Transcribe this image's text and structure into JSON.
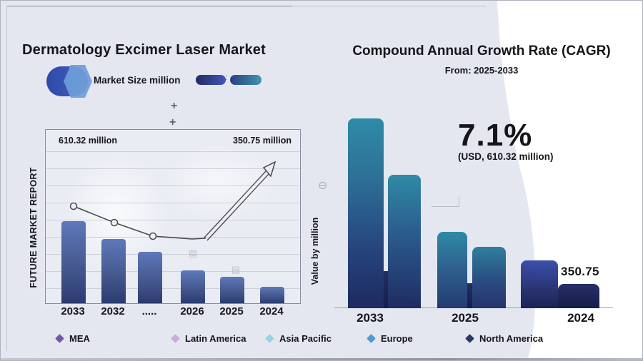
{
  "header": {
    "left_title": "Dermatology Excimer Laser Market",
    "left_subtitle": "Market Size million",
    "pill_separator": ":",
    "plus_mark": "+",
    "right_title": "Compound Annual Growth Rate (CAGR)",
    "right_subtitle": "From: 2025-2033"
  },
  "left_panel": {
    "top_left_value": "610.32 million",
    "top_right_value": "350.75 million",
    "side_label": "FUTURE MARKET REPORT",
    "value_axis_label": "Value by million",
    "minus_glyph": "⊖",
    "ghost_glyph": "▤"
  },
  "right_panel": {
    "cagr_value": "7.1%",
    "cagr_basis": "(USD, 610.32 million)",
    "end_value": "350.75"
  },
  "legend": {
    "items": [
      {
        "label": "MEA",
        "color": "#7456a5"
      },
      {
        "label": "Latin America",
        "color": "#d2a8d8"
      },
      {
        "label": "Asia Pacific",
        "color": "#96d2e8"
      },
      {
        "label": "Europe",
        "color": "#4a9ad9"
      },
      {
        "label": "North America",
        "color": "#2b3766"
      }
    ]
  },
  "colors": {
    "background": "#e4e7f0",
    "panel_border": "#878d9b",
    "left_bar_top": "#5e78bb",
    "left_bar_bottom": "#2a3b70",
    "teal_accent": "#2e8ba6",
    "navy_accent": "#161d48",
    "royal_blue": "#3c50ab"
  },
  "chart_data": [
    {
      "type": "bar",
      "name": "market-size-by-year",
      "title": "Market Size million",
      "categories": [
        "2033",
        "2032",
        ".....",
        "2026",
        "2025",
        "2024"
      ],
      "values_relative": [
        1.0,
        0.78,
        0.63,
        0.4,
        0.32,
        0.2
      ],
      "known_values": {
        "2033": "610.32 million",
        "2024": "350.75 million"
      },
      "ylabel": "Value by million",
      "trend_line": "declining line with circular markers from 2033 through 2026, then upward outlined arrow toward 350.75 million",
      "grid": true,
      "legend_position": "bottom"
    },
    {
      "type": "bar",
      "name": "cagr-by-year-pairs",
      "title": "Compound Annual Growth Rate (CAGR)",
      "subtitle": "From: 2025-2033",
      "categories": [
        "2033",
        "2025",
        "2024"
      ],
      "series": [
        {
          "name": "bar-left",
          "values_relative": [
            1.0,
            0.402,
            0.252
          ]
        },
        {
          "name": "bar-right",
          "values_relative": [
            0.703,
            0.323,
            0.128
          ]
        }
      ],
      "cagr": "7.1%",
      "cagr_basis": "(USD, 610.32 million)",
      "data_labels": [
        {
          "category": "2024",
          "text": "350.75"
        }
      ],
      "grid": false
    }
  ]
}
